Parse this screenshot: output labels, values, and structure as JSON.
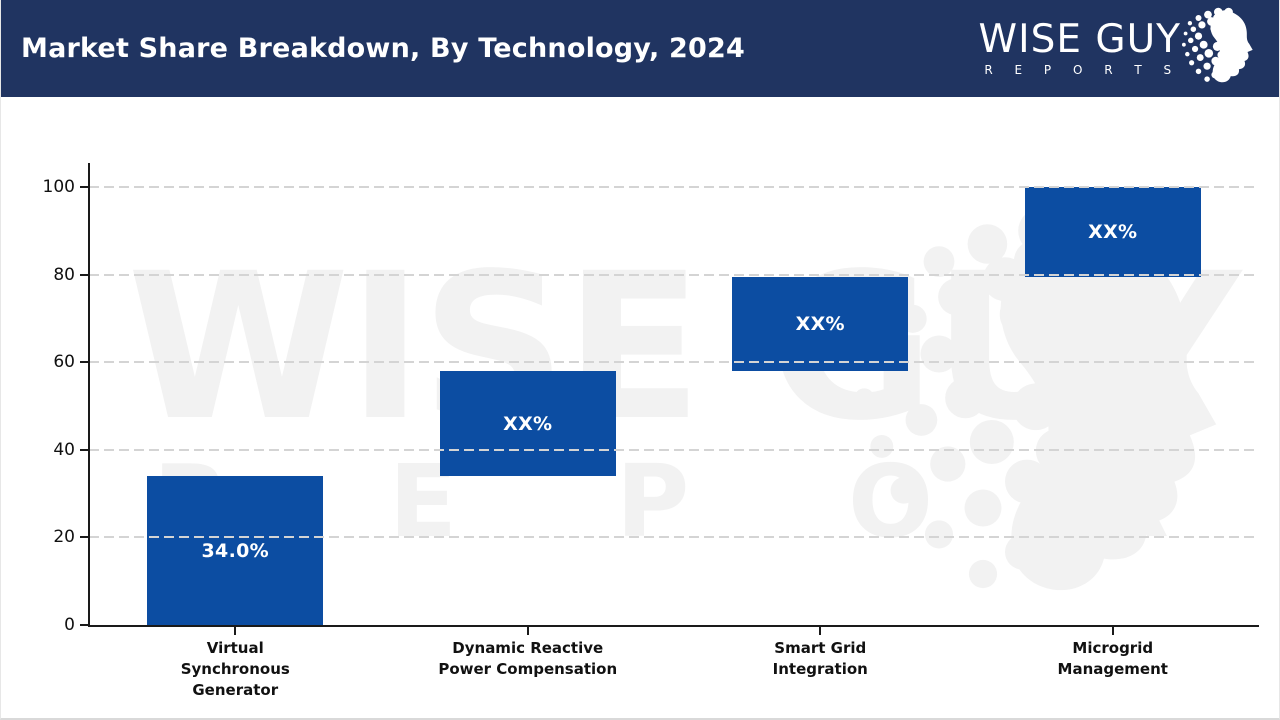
{
  "header": {
    "title": "Market Share Breakdown, By Technology, 2024",
    "logo": {
      "name": "Wise Guy Reports",
      "line1": "WISE GUY",
      "line2": "R E P O R T S"
    }
  },
  "watermark": {
    "line1": "WISE GUY",
    "line2": "R E P O R T S"
  },
  "chart_data": {
    "type": "bar",
    "subtype": "waterfall",
    "title": "Market Share Breakdown, By Technology, 2024",
    "xlabel": "",
    "ylabel": "",
    "ylim": [
      0,
      100
    ],
    "yticks": [
      0,
      20,
      40,
      60,
      80,
      100
    ],
    "grid": "horizontal-dashed",
    "legend": "none",
    "bar_color": "#0c4da2",
    "bar_label_color": "#ffffff",
    "categories": [
      {
        "name": "Virtual Synchronous Generator",
        "lines": [
          "Virtual",
          "Synchronous",
          "Generator"
        ]
      },
      {
        "name": "Dynamic Reactive Power Compensation",
        "lines": [
          "Dynamic Reactive",
          "Power Compensation"
        ]
      },
      {
        "name": "Smart Grid Integration",
        "lines": [
          "Smart Grid",
          "Integration"
        ]
      },
      {
        "name": "Microgrid Management",
        "lines": [
          "Microgrid",
          "Management"
        ]
      }
    ],
    "segments": [
      {
        "category": "Virtual Synchronous Generator",
        "start": 0,
        "end": 34,
        "value": 34.0,
        "label": "34.0%"
      },
      {
        "category": "Dynamic Reactive Power Compensation",
        "start": 34,
        "end": 58,
        "value": 24.0,
        "label": "XX%"
      },
      {
        "category": "Smart Grid Integration",
        "start": 58,
        "end": 79.5,
        "value": 21.5,
        "label": "XX%"
      },
      {
        "category": "Microgrid Management",
        "start": 79.5,
        "end": 100,
        "value": 20.5,
        "label": "XX%"
      }
    ]
  },
  "colors": {
    "header_bg": "#203461",
    "bar": "#0c4da2",
    "grid": "#d4d4d4",
    "axis": "#1a1a1a",
    "watermark": "#f2f2f2",
    "text": "#111111"
  }
}
